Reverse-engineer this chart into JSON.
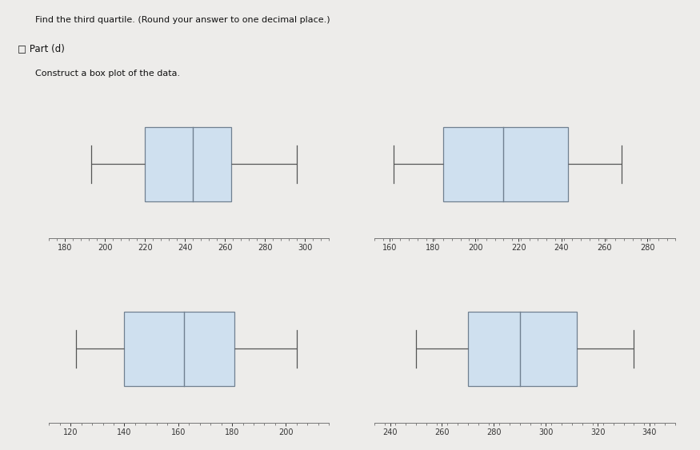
{
  "title_text": "Find the third quartile. (Round your answer to one decimal place.)",
  "part_label": "□ Part (d)",
  "construct_label": "Construct a box plot of the data.",
  "background_color": "#edecea",
  "header_color": "#b0b0b0",
  "box_fill": "#cfe0ef",
  "box_edge": "#708090",
  "whisker_color": "#555555",
  "line_color": "#888888",
  "plots": [
    {
      "min": 193,
      "q1": 220,
      "median": 244,
      "q3": 263,
      "max": 296,
      "xlim": [
        172,
        312
      ],
      "xticks": [
        180,
        200,
        220,
        240,
        260,
        280,
        300
      ],
      "minor_step": 4
    },
    {
      "min": 162,
      "q1": 185,
      "median": 213,
      "q3": 243,
      "max": 268,
      "xlim": [
        153,
        290
      ],
      "xticks": [
        160,
        180,
        200,
        220,
        240,
        260,
        280
      ],
      "minor_step": 4
    },
    {
      "min": 122,
      "q1": 140,
      "median": 162,
      "q3": 181,
      "max": 204,
      "xlim": [
        112,
        215
      ],
      "xticks": [
        120,
        140,
        160,
        180,
        200
      ],
      "minor_step": 4
    },
    {
      "min": 250,
      "q1": 270,
      "median": 290,
      "q3": 312,
      "max": 334,
      "xlim": [
        234,
        350
      ],
      "xticks": [
        240,
        260,
        280,
        300,
        320,
        340
      ],
      "minor_step": 4
    }
  ]
}
